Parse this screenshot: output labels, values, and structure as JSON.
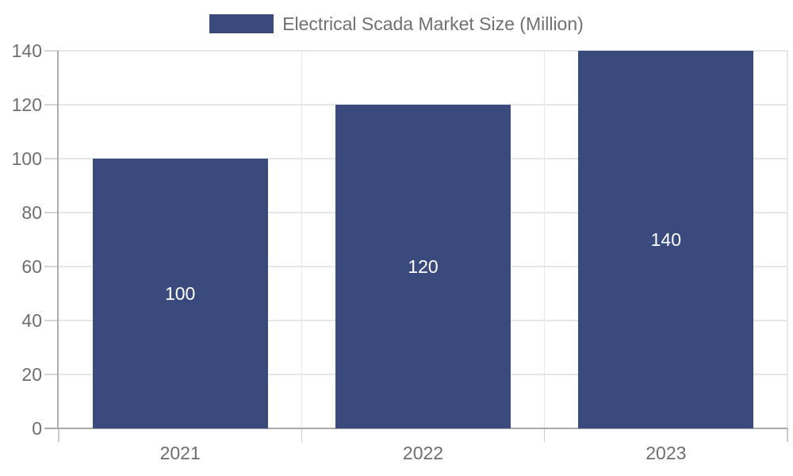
{
  "chart_data": {
    "type": "bar",
    "title": "Electrical Scada Market Size (Million)",
    "categories": [
      "2021",
      "2022",
      "2023"
    ],
    "series": [
      {
        "name": "Electrical Scada Market Size (Million)",
        "values": [
          100,
          120,
          140
        ]
      }
    ],
    "values": [
      100,
      120,
      140
    ],
    "value_labels": [
      "100",
      "120",
      "140"
    ],
    "xlabel": "",
    "ylabel": "",
    "ylim": [
      0,
      140
    ],
    "y_ticks": [
      0,
      20,
      40,
      60,
      80,
      100,
      120,
      140
    ],
    "y_tick_labels": [
      "0",
      "20",
      "40",
      "60",
      "80",
      "100",
      "120",
      "140"
    ],
    "grid": true,
    "legend_position": "top"
  },
  "colors": {
    "bar": "#3a4a7d",
    "value_label": "#ffffff",
    "grid": "#e7e7e7",
    "axis": "#a9a9a9",
    "tick_text": "#6e6e6e",
    "legend_text": "#707070",
    "background": "#ffffff"
  }
}
